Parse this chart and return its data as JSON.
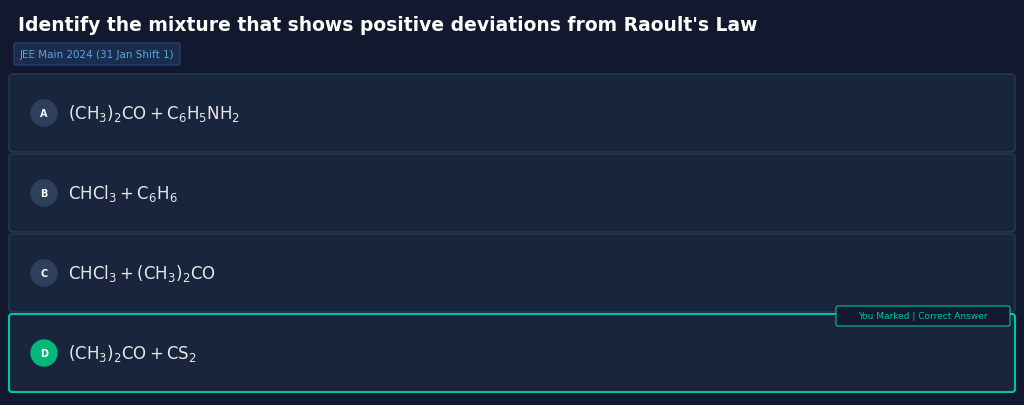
{
  "title": "Identify the mixture that shows positive deviations from Raoult's Law",
  "tag": "JEE Main 2024 (31 Jan Shift 1)",
  "bg_color": "#12192e",
  "tag_bg": "#1b2d4f",
  "tag_text_color": "#5ba3d9",
  "tag_border_color": "#2a4a7a",
  "option_bg": "#19243d",
  "option_border": "#2e3f5c",
  "correct_border": "#00c4a7",
  "correct_answer_label": "You Marked | Correct Answer",
  "correct_answer_label_bg": "#12192e",
  "correct_answer_label_text": "#00c4a7",
  "correct_answer_label_border": "#00c4a7",
  "options": [
    {
      "label": "A",
      "text": "$(\\mathrm{CH_3})_2\\mathrm{CO} + \\mathrm{C_6H_5NH_2}$",
      "circle_color": "#2e3f5c",
      "is_correct": false
    },
    {
      "label": "B",
      "text": "$\\mathrm{CHCl_3} + \\mathrm{C_6H_6}$",
      "circle_color": "#2e3f5c",
      "is_correct": false
    },
    {
      "label": "C",
      "text": "$\\mathrm{CHCl_3} + (\\mathrm{CH_3})_2\\mathrm{CO}$",
      "circle_color": "#2e3f5c",
      "is_correct": false
    },
    {
      "label": "D",
      "text": "$(\\mathrm{CH_3})_2\\mathrm{CO} + \\mathrm{CS_2}$",
      "circle_color": "#00b87a",
      "is_correct": true
    }
  ],
  "title_color": "#ffffff",
  "option_text_color": "#e8e8e8",
  "title_fontsize": 13.5,
  "option_fontsize": 12,
  "tag_fontsize": 7.5,
  "label_fontsize": 7
}
